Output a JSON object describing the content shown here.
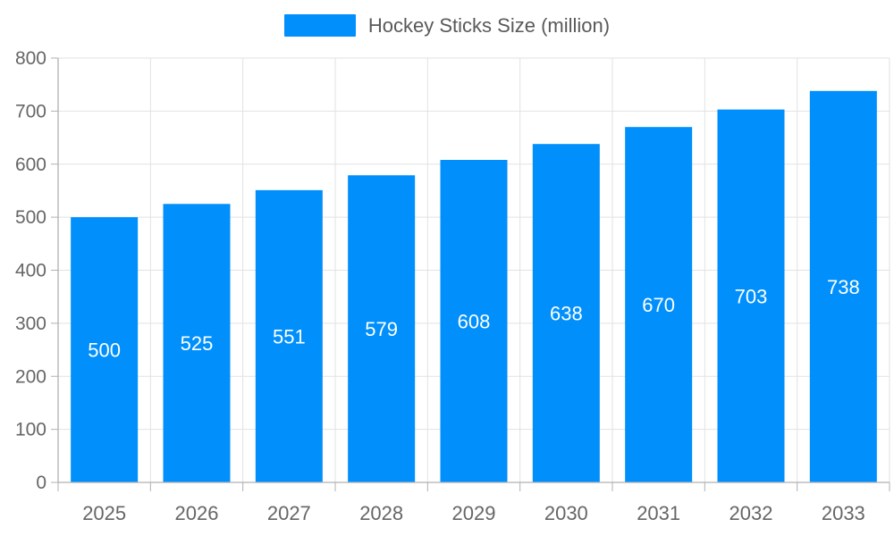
{
  "chart_data": {
    "type": "bar",
    "title": "Hockey Sticks Size (million)",
    "categories": [
      "2025",
      "2026",
      "2027",
      "2028",
      "2029",
      "2030",
      "2031",
      "2032",
      "2033"
    ],
    "series": [
      {
        "name": "Hockey Sticks Size (million)",
        "values": [
          500,
          525,
          551,
          579,
          608,
          638,
          670,
          703,
          738
        ]
      }
    ],
    "xlabel": "",
    "ylabel": "",
    "ylim": [
      0,
      800
    ],
    "yticks": [
      0,
      100,
      200,
      300,
      400,
      500,
      600,
      700,
      800
    ],
    "grid": true,
    "legend_position": "top",
    "data_labels": "inside-center",
    "colors": {
      "bar": "#008FFB",
      "bar_label": "#ffffff",
      "axis_label": "#666666",
      "legend_text": "#595959",
      "grid_line": "#e2e2e2",
      "axis_line": "#b0b0b0"
    }
  }
}
